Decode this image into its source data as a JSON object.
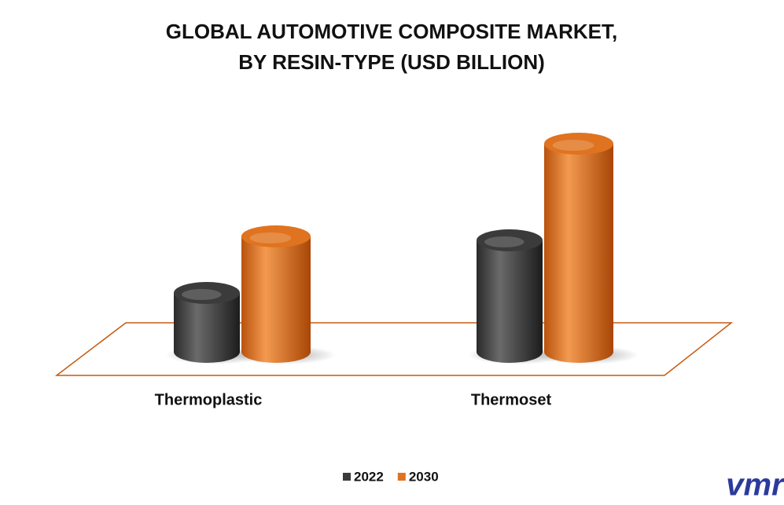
{
  "chart_data": {
    "type": "bar3d",
    "title": [
      "GLOBAL AUTOMOTIVE COMPOSITE MARKET,",
      "BY RESIN-TYPE (USD BILLION)"
    ],
    "categories": [
      "Thermoplastic",
      "Thermoset"
    ],
    "series": [
      {
        "name": "2022",
        "color": "#3b3b3b",
        "values": [
          7.5,
          14.2
        ]
      },
      {
        "name": "2030",
        "color": "#e0731f",
        "values": [
          14.7,
          26.5
        ]
      }
    ],
    "legend": "bottom",
    "logo": "vmr"
  }
}
